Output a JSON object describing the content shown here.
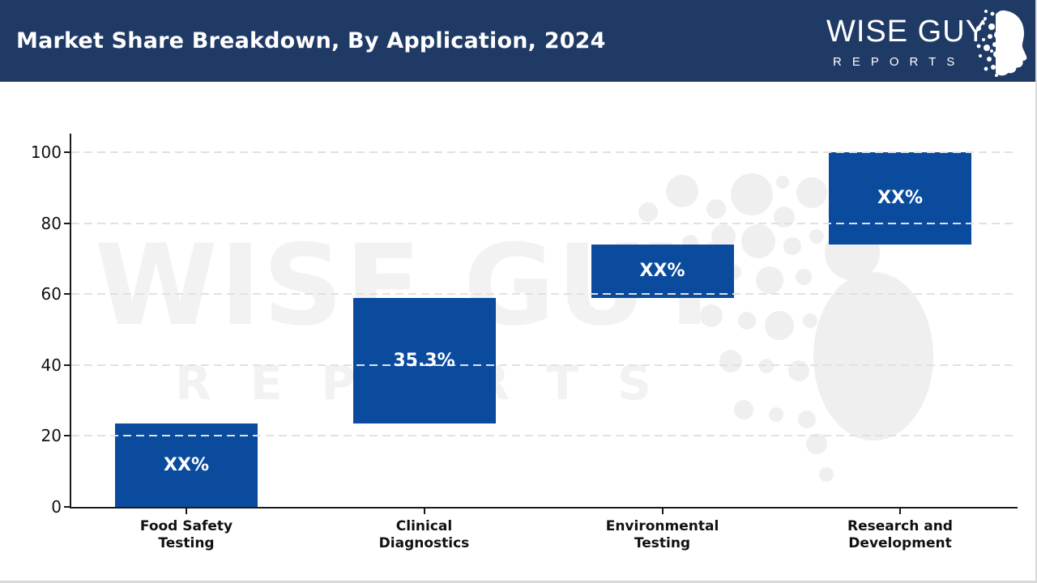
{
  "header": {
    "title": "Market Share Breakdown, By Application, 2024",
    "logo_line1": "WISE GUY",
    "logo_line2": "REPORTS"
  },
  "watermark": {
    "line1": "WISE GUY",
    "line2": "REPORTS"
  },
  "colors": {
    "header_bg": "#203a66",
    "bar_blue": "#0a4b9e",
    "grid_gray": "#e1e1e1",
    "axis_black": "#1a1a1a",
    "watermark_gray": "#f2f2f2",
    "bar_label_white": "#ffffff"
  },
  "chart_data": {
    "type": "bar",
    "subtype": "waterfall",
    "title": "Market Share Breakdown, By Application, 2024",
    "categories": [
      "Food Safety Testing",
      "Clinical Diagnostics",
      "Environmental Testing",
      "Research and Development"
    ],
    "category_lines": [
      [
        "Food Safety",
        "Testing"
      ],
      [
        "Clinical",
        "Diagnostics"
      ],
      [
        "Environmental",
        "Testing"
      ],
      [
        "Research and",
        "Development"
      ]
    ],
    "segments": [
      {
        "category": "Food Safety Testing",
        "label": "XX%",
        "start": 0,
        "end": 23.5,
        "value_est": 23.5
      },
      {
        "category": "Clinical Diagnostics",
        "label": "35.3%",
        "start": 23.5,
        "end": 58.8,
        "value_est": 35.3
      },
      {
        "category": "Environmental Testing",
        "label": "XX%",
        "start": 58.8,
        "end": 73.9,
        "value_est": 15.1
      },
      {
        "category": "Research and Development",
        "label": "XX%",
        "start": 73.9,
        "end": 100,
        "value_est": 26.1
      }
    ],
    "xlabel": "",
    "ylabel": "",
    "ylim": [
      0,
      100
    ],
    "yticks": [
      0,
      20,
      40,
      60,
      80,
      100
    ],
    "grid": "horizontal-dashed",
    "legend": "none",
    "bar_color": "#0a4b9e",
    "bar_label_color": "#ffffff"
  }
}
